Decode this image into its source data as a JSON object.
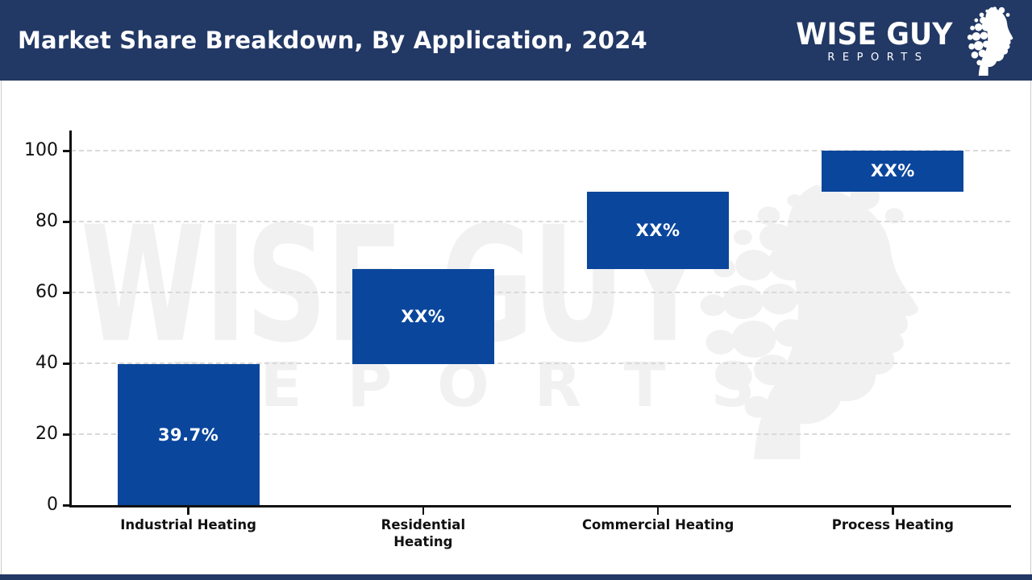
{
  "header": {
    "title": "Market Share Breakdown, By Application, 2024",
    "logo_line1": "WISE GUY",
    "logo_line2": "REPORTS"
  },
  "watermark": {
    "line1": "WISE GUY",
    "line2": "REPORTS"
  },
  "chart_data": {
    "type": "bar",
    "subtype": "floating-waterfall",
    "title": "Market Share Breakdown, By Application, 2024",
    "categories": [
      "Industrial Heating",
      "Residential\nHeating",
      "Commercial Heating",
      "Process Heating"
    ],
    "segments": [
      {
        "category": "Industrial Heating",
        "start": 0,
        "end": 39.7,
        "label": "39.7%"
      },
      {
        "category": "Residential Heating",
        "start": 39.7,
        "end": 66.5,
        "label": "XX%"
      },
      {
        "category": "Commercial Heating",
        "start": 66.5,
        "end": 88.5,
        "label": "XX%"
      },
      {
        "category": "Process Heating",
        "start": 88.5,
        "end": 100,
        "label": "XX%"
      }
    ],
    "yticks": [
      0,
      20,
      40,
      60,
      80,
      100
    ],
    "ylim": [
      0,
      105
    ],
    "xlabel": "",
    "ylabel": "",
    "grid": "horizontal-dashed",
    "legend": "none",
    "bar_color": "#0a469c"
  },
  "colors": {
    "header_bg": "#223865",
    "footer_bg": "#223865",
    "bar": "#0a469c",
    "bar_label": "#ffffff",
    "grid": "#d9d9d9",
    "axis": "#111111",
    "watermark": "#f1f1f1",
    "content_border": "#cccccc"
  }
}
